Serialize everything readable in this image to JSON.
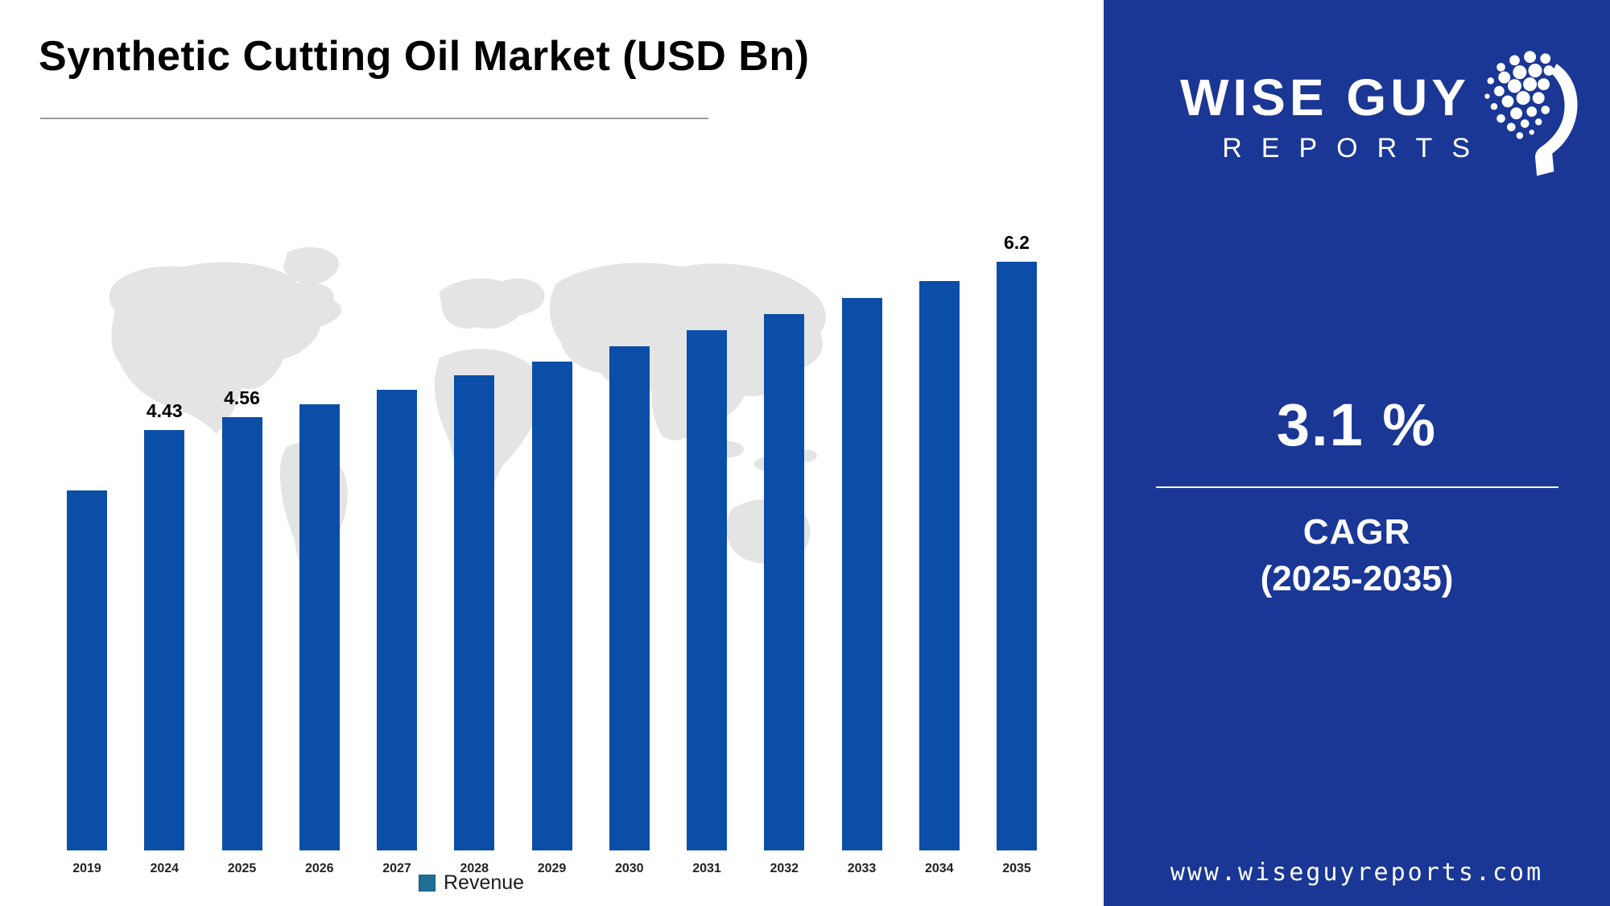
{
  "chart_data": {
    "type": "bar",
    "title": "Synthetic Cutting Oil Market (USD Bn)",
    "categories": [
      "2019",
      "2024",
      "2025",
      "2026",
      "2027",
      "2028",
      "2029",
      "2030",
      "2031",
      "2032",
      "2033",
      "2034",
      "2035"
    ],
    "values": [
      3.79,
      4.43,
      4.56,
      4.7,
      4.85,
      5.0,
      5.15,
      5.31,
      5.48,
      5.65,
      5.82,
      6.0,
      6.2
    ],
    "series_name": "Revenue",
    "value_labels": {
      "2024": "4.43",
      "2025": "4.56",
      "2035": "6.2"
    },
    "xlabel": "",
    "ylabel": "",
    "ylim": [
      0,
      6.5
    ],
    "grid": false,
    "legend_position": "bottom"
  },
  "legend": {
    "label": "Revenue"
  },
  "right_panel": {
    "logo_line1": "WISE GUY",
    "logo_line2": "REPORTS",
    "cagr_value": "3.1 %",
    "cagr_label": "CAGR",
    "cagr_range": "(2025-2035)",
    "website": "www.wiseguyreports.com"
  },
  "colors": {
    "bar": "#0b4ea8",
    "panel_background": "#1a3795",
    "legend_swatch": "#1f6e96",
    "map_watermark": "#e4e4e4",
    "title_text": "#000000",
    "panel_text": "#ffffff"
  }
}
